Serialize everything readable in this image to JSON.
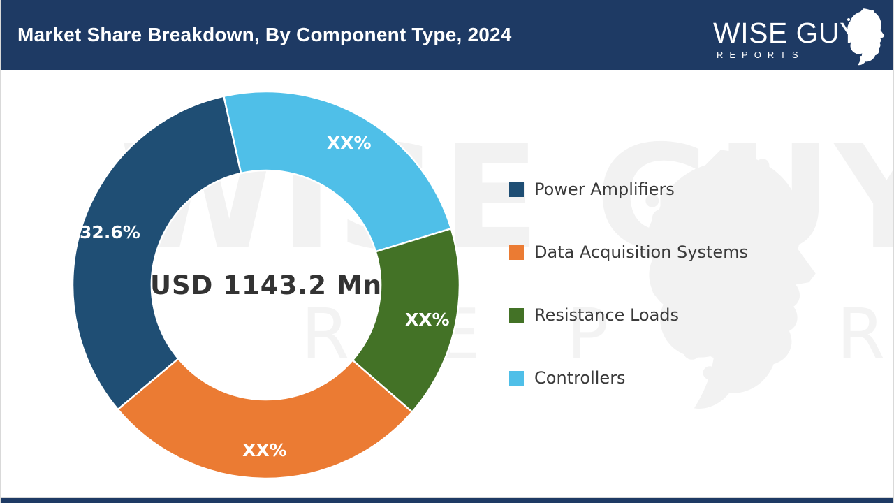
{
  "header": {
    "title": "Market Share Breakdown, By Component Type, 2024",
    "logo": {
      "line1": "WISE GUY",
      "line2": "REPORTS"
    }
  },
  "watermark": {
    "line1": "WISE GUY",
    "line2": "R E P O R T S"
  },
  "chart_data": {
    "type": "pie",
    "subtype": "donut",
    "title": "Market Share Breakdown, By Component Type, 2024",
    "center_label": "USD 1143.2 Mn",
    "start_angle_deg": 230,
    "slices": [
      {
        "name": "Power Amplifiers",
        "value": 32.6,
        "label": "32.6%",
        "color": "#1f4e74"
      },
      {
        "name": "Controllers",
        "value": 23.8,
        "label": "XX%",
        "color": "#4fbfe8"
      },
      {
        "name": "Resistance Loads",
        "value": 16.1,
        "label": "XX%",
        "color": "#437226"
      },
      {
        "name": "Data Acquisition Systems",
        "value": 27.5,
        "label": "XX%",
        "color": "#eb7b33"
      }
    ],
    "legend": [
      {
        "label": "Power Amplifiers",
        "color": "#1f4e74"
      },
      {
        "label": "Data Acquisition Systems",
        "color": "#eb7b33"
      },
      {
        "label": "Resistance Loads",
        "color": "#437226"
      },
      {
        "label": "Controllers",
        "color": "#4fbfe8"
      }
    ],
    "legend_position": "right"
  },
  "colors": {
    "header_bg": "#1e3a64",
    "footer_bg": "#1e3a64",
    "watermark": "#f2f2f2",
    "center_text": "#333333",
    "legend_text": "#3a3a3a"
  }
}
